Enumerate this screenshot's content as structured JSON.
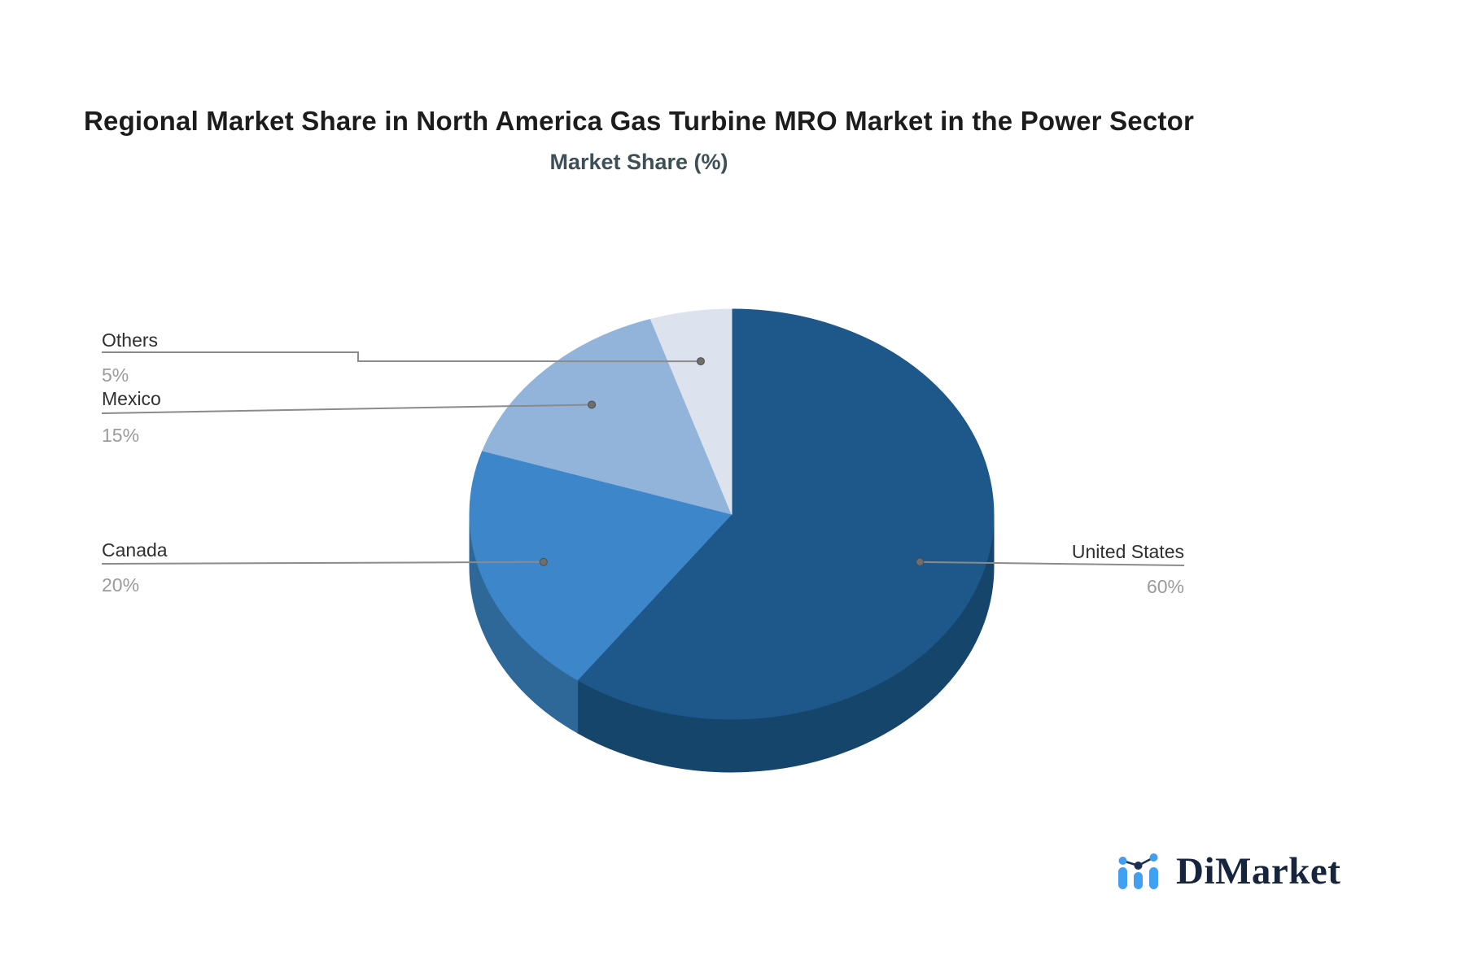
{
  "title": "Regional Market Share in North America Gas Turbine MRO Market in the Power Sector",
  "subtitle": "Market Share (%)",
  "logo": {
    "text": "DiMarket",
    "icon": "bar-chart-trend-icon"
  },
  "chart_data": {
    "type": "pie",
    "title": "Regional Market Share in North America Gas Turbine MRO Market in the Power Sector",
    "subtitle": "Market Share (%)",
    "unit": "%",
    "start_angle": "top",
    "direction": "clockwise",
    "effect": "3d",
    "slices": [
      {
        "label": "United States",
        "value": 60,
        "pct_label": "60%",
        "color": "#1e5789",
        "side_color": "#16456c"
      },
      {
        "label": "Canada",
        "value": 20,
        "pct_label": "20%",
        "color": "#3c86c9",
        "side_color": "#2e6898"
      },
      {
        "label": "Mexico",
        "value": 15,
        "pct_label": "15%",
        "color": "#92b4da"
      },
      {
        "label": "Others",
        "value": 5,
        "pct_label": "5%",
        "color": "#dce3ee"
      }
    ],
    "leader_line_color": "#8b8b8b",
    "leader_dot_color": "#6e6e6e"
  }
}
